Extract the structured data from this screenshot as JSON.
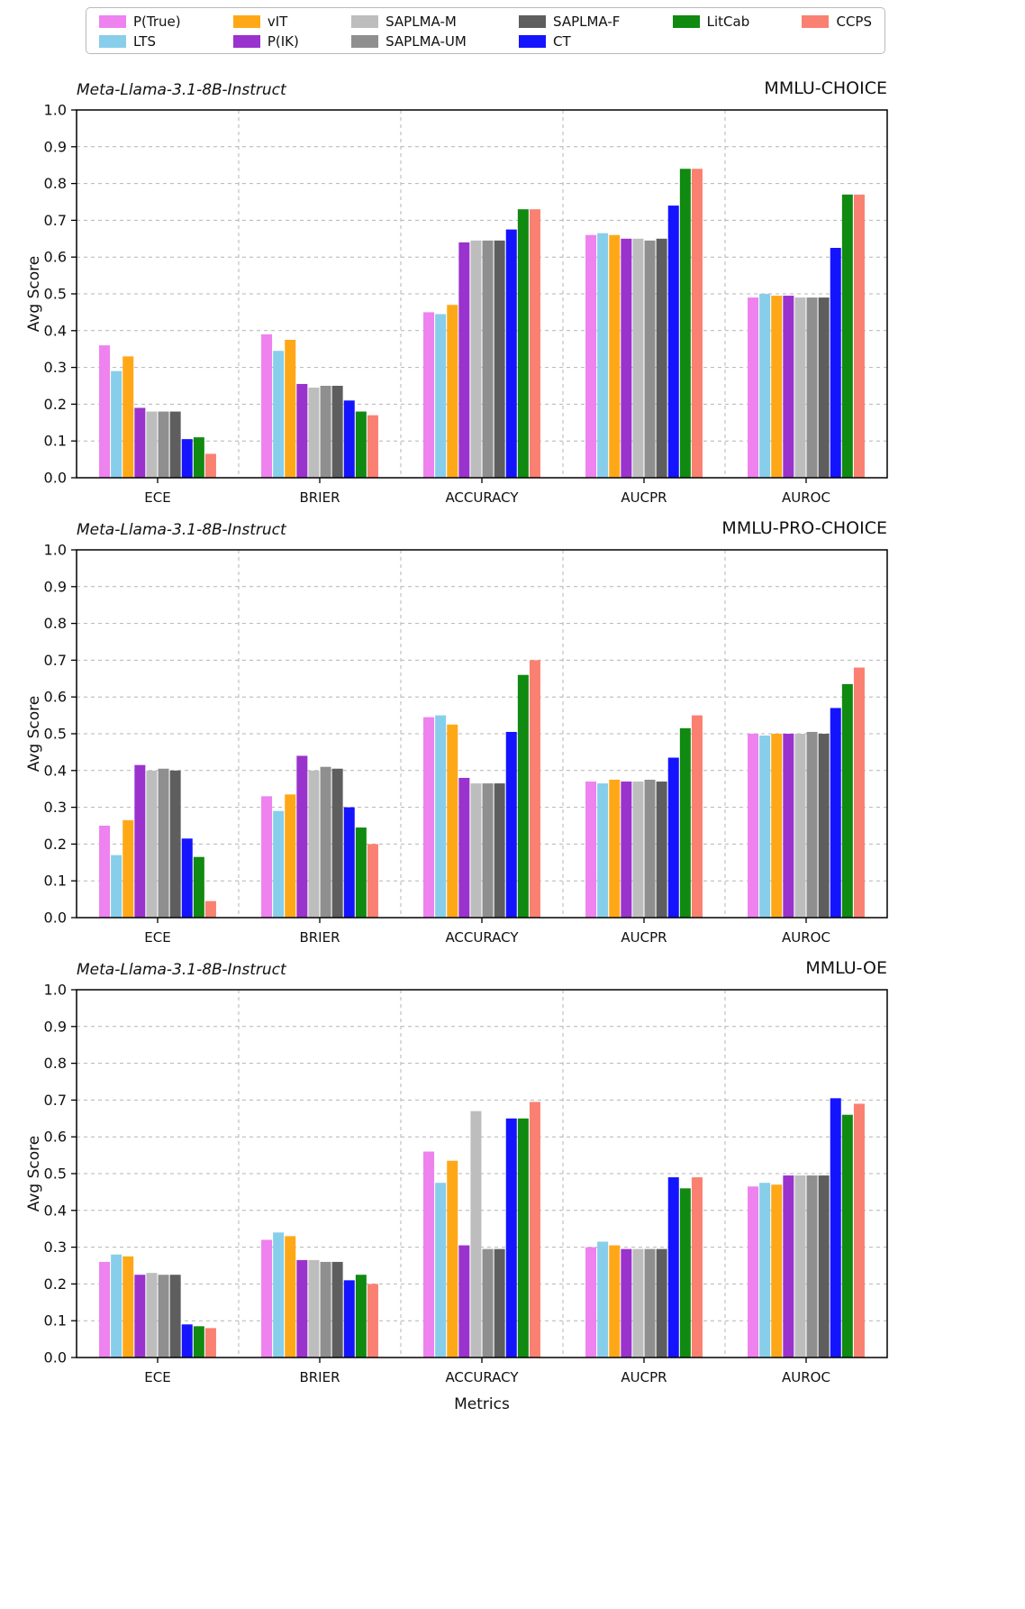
{
  "legend": {
    "columns": [
      [
        {
          "label": "P(True)",
          "color": "#EE82EE"
        },
        {
          "label": "LTS",
          "color": "#87CEEB"
        }
      ],
      [
        {
          "label": "vIT",
          "color": "#FFA817"
        },
        {
          "label": "P(IK)",
          "color": "#9A32CD"
        }
      ],
      [
        {
          "label": "SAPLMA-M",
          "color": "#BDBDBD"
        },
        {
          "label": "SAPLMA-UM",
          "color": "#8F8F8F"
        }
      ],
      [
        {
          "label": "SAPLMA-F",
          "color": "#5E5E5E"
        },
        {
          "label": "CT",
          "color": "#1414FF"
        }
      ],
      [
        {
          "label": "LitCab",
          "color": "#108A10"
        }
      ],
      [
        {
          "label": "CCPS",
          "color": "#FA8072"
        }
      ]
    ]
  },
  "chart_data": [
    {
      "type": "bar",
      "title_left": "Meta-Llama-3.1-8B-Instruct",
      "title_right": "MMLU-CHOICE",
      "ylabel": "Avg Score",
      "xlabel": "",
      "ylim": [
        0.0,
        1.0
      ],
      "yticks": [
        0.0,
        0.1,
        0.2,
        0.3,
        0.4,
        0.5,
        0.6,
        0.7,
        0.8,
        0.9,
        1.0
      ],
      "grid": {
        "dashed": true,
        "color": "#b4b4b4"
      },
      "legend_position": "top-outside",
      "categories": [
        "ECE",
        "BRIER",
        "ACCURACY",
        "AUCPR",
        "AUROC"
      ],
      "series": [
        {
          "name": "P(True)",
          "color": "#EE82EE",
          "values": [
            0.36,
            0.39,
            0.45,
            0.66,
            0.49
          ]
        },
        {
          "name": "LTS",
          "color": "#87CEEB",
          "values": [
            0.29,
            0.345,
            0.445,
            0.665,
            0.5
          ]
        },
        {
          "name": "vIT",
          "color": "#FFA817",
          "values": [
            0.33,
            0.375,
            0.47,
            0.66,
            0.495
          ]
        },
        {
          "name": "P(IK)",
          "color": "#9A32CD",
          "values": [
            0.19,
            0.255,
            0.64,
            0.65,
            0.495
          ]
        },
        {
          "name": "SAPLMA-M",
          "color": "#BDBDBD",
          "values": [
            0.18,
            0.245,
            0.645,
            0.65,
            0.49
          ]
        },
        {
          "name": "SAPLMA-UM",
          "color": "#8F8F8F",
          "values": [
            0.18,
            0.25,
            0.645,
            0.645,
            0.49
          ]
        },
        {
          "name": "SAPLMA-F",
          "color": "#5E5E5E",
          "values": [
            0.18,
            0.25,
            0.645,
            0.65,
            0.49
          ]
        },
        {
          "name": "CT",
          "color": "#1414FF",
          "values": [
            0.105,
            0.21,
            0.675,
            0.74,
            0.625
          ]
        },
        {
          "name": "LitCab",
          "color": "#108A10",
          "values": [
            0.11,
            0.18,
            0.73,
            0.84,
            0.77
          ]
        },
        {
          "name": "CCPS",
          "color": "#FA8072",
          "values": [
            0.065,
            0.17,
            0.73,
            0.84,
            0.77
          ]
        }
      ]
    },
    {
      "type": "bar",
      "title_left": "Meta-Llama-3.1-8B-Instruct",
      "title_right": "MMLU-PRO-CHOICE",
      "ylabel": "Avg Score",
      "xlabel": "",
      "ylim": [
        0.0,
        1.0
      ],
      "yticks": [
        0.0,
        0.1,
        0.2,
        0.3,
        0.4,
        0.5,
        0.6,
        0.7,
        0.8,
        0.9,
        1.0
      ],
      "grid": {
        "dashed": true,
        "color": "#b4b4b4"
      },
      "legend_position": "top-outside",
      "categories": [
        "ECE",
        "BRIER",
        "ACCURACY",
        "AUCPR",
        "AUROC"
      ],
      "series": [
        {
          "name": "P(True)",
          "color": "#EE82EE",
          "values": [
            0.25,
            0.33,
            0.545,
            0.37,
            0.5
          ]
        },
        {
          "name": "LTS",
          "color": "#87CEEB",
          "values": [
            0.17,
            0.29,
            0.55,
            0.365,
            0.495
          ]
        },
        {
          "name": "vIT",
          "color": "#FFA817",
          "values": [
            0.265,
            0.335,
            0.525,
            0.375,
            0.5
          ]
        },
        {
          "name": "P(IK)",
          "color": "#9A32CD",
          "values": [
            0.415,
            0.44,
            0.38,
            0.37,
            0.5
          ]
        },
        {
          "name": "SAPLMA-M",
          "color": "#BDBDBD",
          "values": [
            0.4,
            0.4,
            0.365,
            0.37,
            0.5
          ]
        },
        {
          "name": "SAPLMA-UM",
          "color": "#8F8F8F",
          "values": [
            0.405,
            0.41,
            0.365,
            0.375,
            0.505
          ]
        },
        {
          "name": "SAPLMA-F",
          "color": "#5E5E5E",
          "values": [
            0.4,
            0.405,
            0.365,
            0.37,
            0.5
          ]
        },
        {
          "name": "CT",
          "color": "#1414FF",
          "values": [
            0.215,
            0.3,
            0.505,
            0.435,
            0.57
          ]
        },
        {
          "name": "LitCab",
          "color": "#108A10",
          "values": [
            0.165,
            0.245,
            0.66,
            0.515,
            0.635
          ]
        },
        {
          "name": "CCPS",
          "color": "#FA8072",
          "values": [
            0.045,
            0.2,
            0.7,
            0.55,
            0.68
          ]
        }
      ]
    },
    {
      "type": "bar",
      "title_left": "Meta-Llama-3.1-8B-Instruct",
      "title_right": "MMLU-OE",
      "ylabel": "Avg Score",
      "xlabel": "Metrics",
      "ylim": [
        0.0,
        1.0
      ],
      "yticks": [
        0.0,
        0.1,
        0.2,
        0.3,
        0.4,
        0.5,
        0.6,
        0.7,
        0.8,
        0.9,
        1.0
      ],
      "grid": {
        "dashed": true,
        "color": "#b4b4b4"
      },
      "legend_position": "top-outside",
      "categories": [
        "ECE",
        "BRIER",
        "ACCURACY",
        "AUCPR",
        "AUROC"
      ],
      "series": [
        {
          "name": "P(True)",
          "color": "#EE82EE",
          "values": [
            0.26,
            0.32,
            0.56,
            0.3,
            0.465
          ]
        },
        {
          "name": "LTS",
          "color": "#87CEEB",
          "values": [
            0.28,
            0.34,
            0.475,
            0.315,
            0.475
          ]
        },
        {
          "name": "vIT",
          "color": "#FFA817",
          "values": [
            0.275,
            0.33,
            0.535,
            0.305,
            0.47
          ]
        },
        {
          "name": "P(IK)",
          "color": "#9A32CD",
          "values": [
            0.225,
            0.265,
            0.305,
            0.295,
            0.495
          ]
        },
        {
          "name": "SAPLMA-M",
          "color": "#BDBDBD",
          "values": [
            0.23,
            0.265,
            0.67,
            0.295,
            0.495
          ]
        },
        {
          "name": "SAPLMA-UM",
          "color": "#8F8F8F",
          "values": [
            0.225,
            0.26,
            0.295,
            0.295,
            0.495
          ]
        },
        {
          "name": "SAPLMA-F",
          "color": "#5E5E5E",
          "values": [
            0.225,
            0.26,
            0.295,
            0.295,
            0.495
          ]
        },
        {
          "name": "CT",
          "color": "#1414FF",
          "values": [
            0.09,
            0.21,
            0.65,
            0.49,
            0.705
          ]
        },
        {
          "name": "LitCab",
          "color": "#108A10",
          "values": [
            0.085,
            0.225,
            0.65,
            0.46,
            0.66
          ]
        },
        {
          "name": "CCPS",
          "color": "#FA8072",
          "values": [
            0.08,
            0.2,
            0.695,
            0.49,
            0.69
          ]
        }
      ]
    }
  ]
}
